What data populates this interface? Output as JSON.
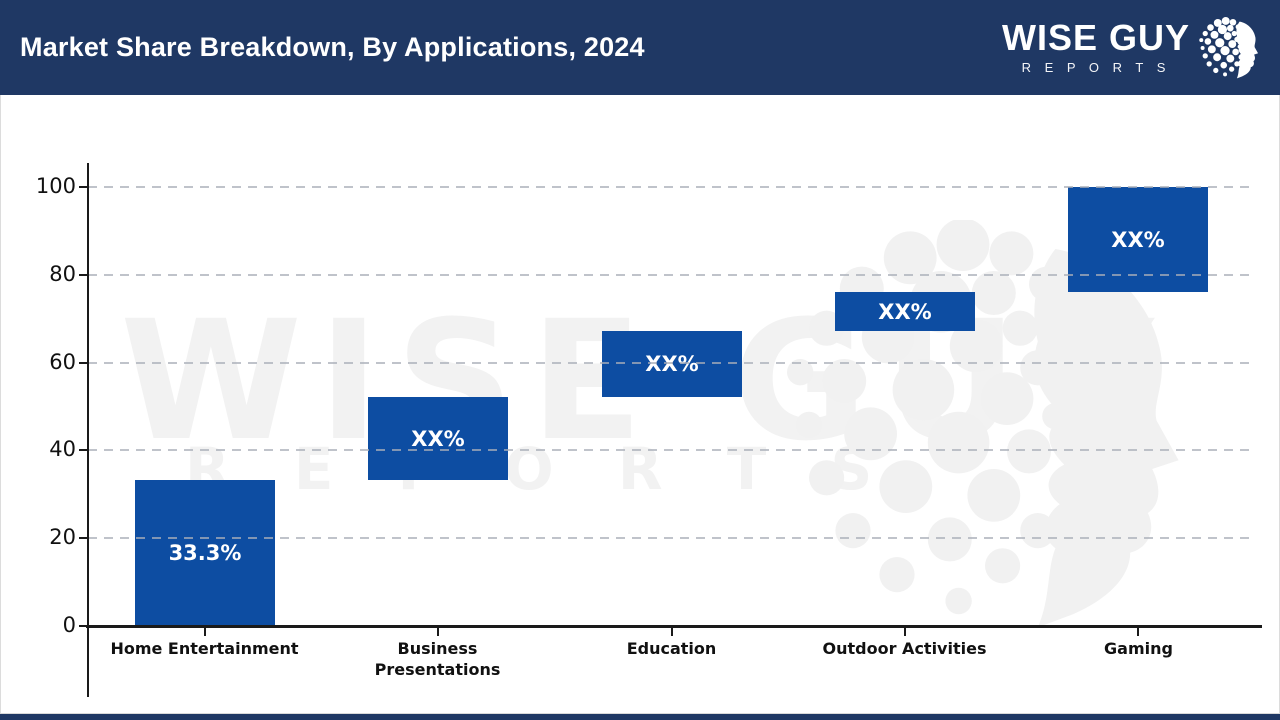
{
  "header": {
    "title": "Market Share Breakdown, By Applications, 2024",
    "bg_color": "#1f3864",
    "logo": {
      "wordmark": "WISE GUY",
      "subtext": "R E P O R T S"
    }
  },
  "watermark": {
    "line1": "WISE GUY",
    "line2": "R E P O R T S"
  },
  "chart_data": {
    "type": "bar",
    "subtype": "waterfall",
    "title": "Market Share Breakdown, By Applications, 2024",
    "categories": [
      "Home Entertainment",
      "Business\nPresentations",
      "Education",
      "Outdoor Activities",
      "Gaming"
    ],
    "segments": [
      {
        "category": "Home Entertainment",
        "start": 0,
        "end": 33.3,
        "label": "33.3%"
      },
      {
        "category": "Business Presentations",
        "start": 33.3,
        "end": 52.2,
        "label": "XX%"
      },
      {
        "category": "Education",
        "start": 52.2,
        "end": 67.2,
        "label": "XX%"
      },
      {
        "category": "Outdoor Activities",
        "start": 67.2,
        "end": 76.0,
        "label": "XX%"
      },
      {
        "category": "Gaming",
        "start": 76.0,
        "end": 100,
        "label": "XX%"
      }
    ],
    "xlabel": "",
    "ylabel": "",
    "ylim": [
      0,
      100
    ],
    "yticks": [
      0,
      20,
      40,
      60,
      80,
      100
    ],
    "grid": "horizontal-dashed",
    "legend": false,
    "bar_color": "#0d4da2",
    "bar_label_color": "#ffffff",
    "axis_color": "#1a1a1a",
    "grid_color": "#aaafb9"
  },
  "footer": {
    "bg_color": "#1f3864"
  }
}
